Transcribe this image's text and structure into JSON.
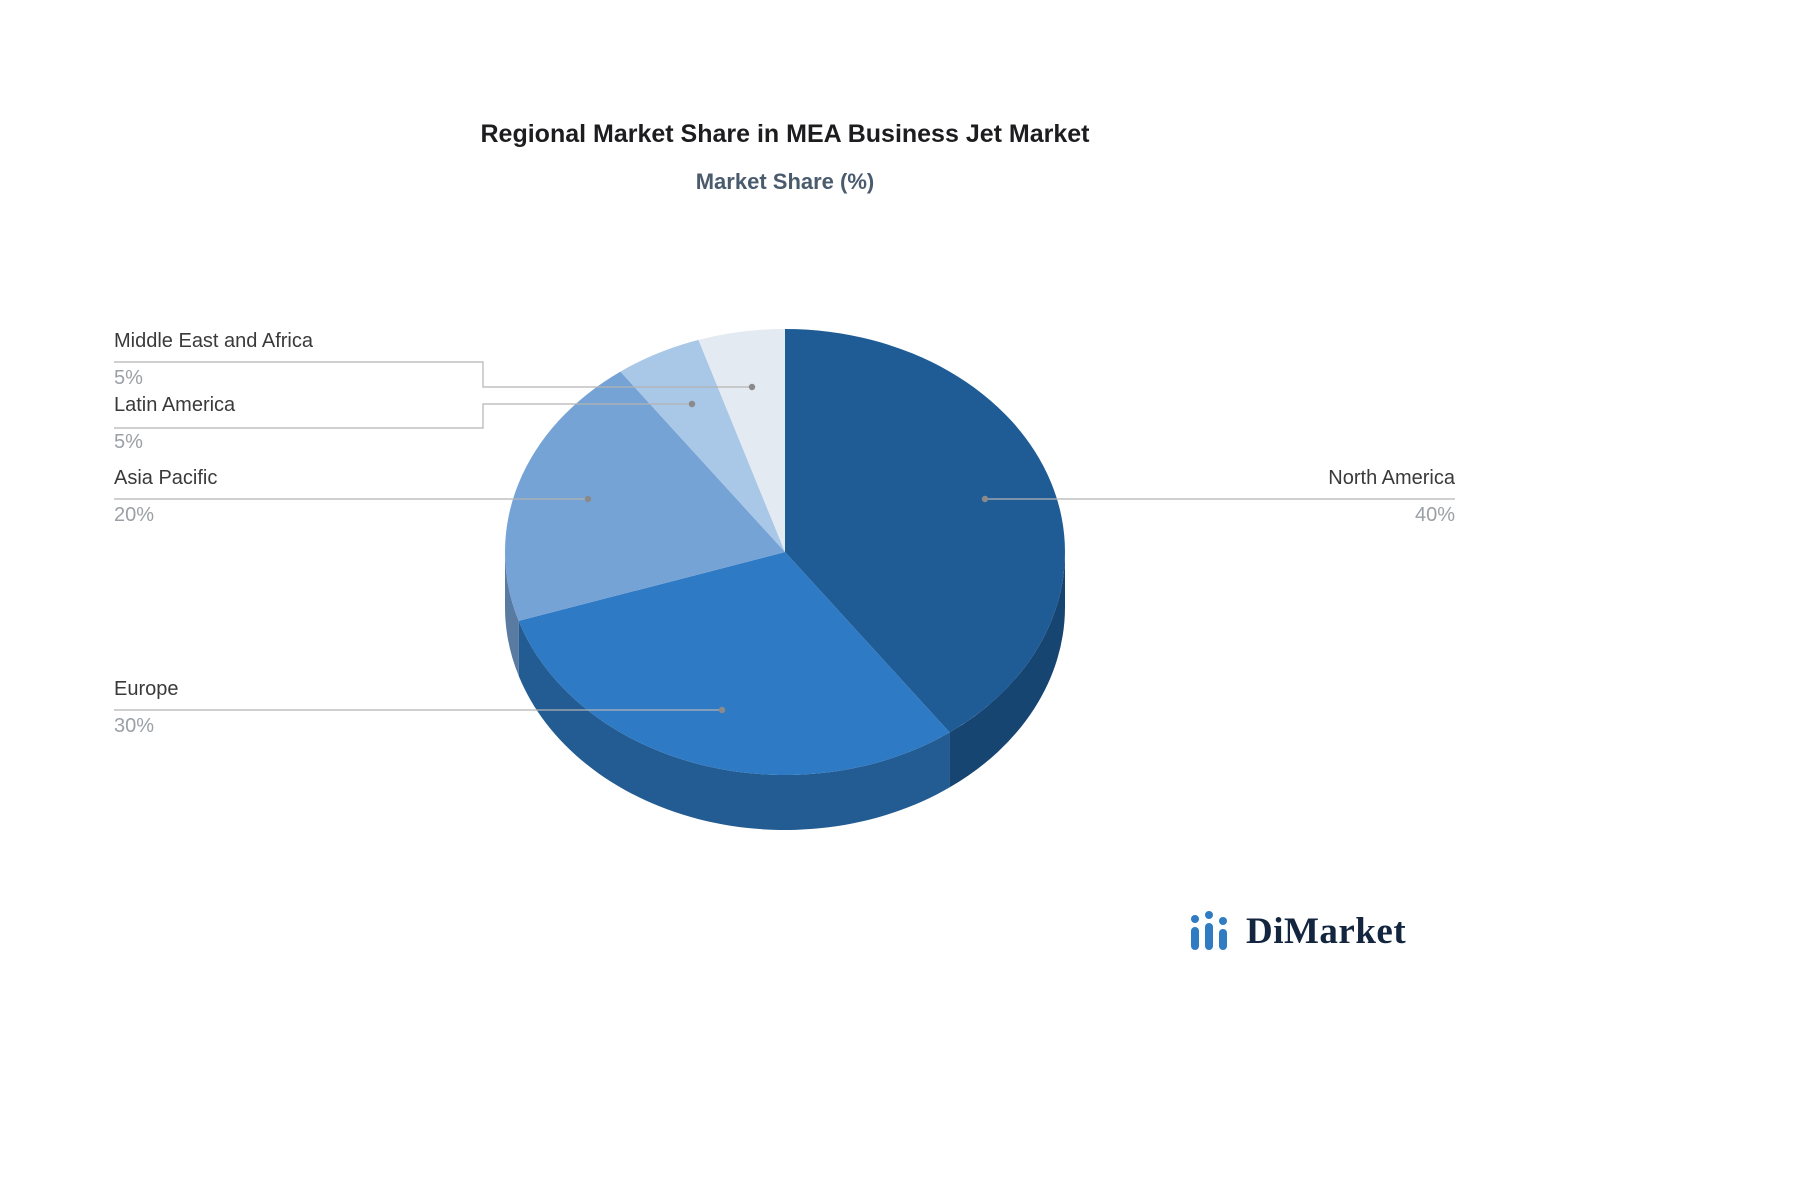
{
  "header": {
    "title": "Regional Market Share in MEA Business Jet Market",
    "subtitle": "Market Share (%)"
  },
  "chart_data": {
    "type": "pie",
    "title": "Regional Market Share in MEA Business Jet Market",
    "subtitle": "Market Share (%)",
    "unit": "%",
    "effect": "3d",
    "start_angle_deg": -90,
    "direction": "clockwise",
    "legend_position": "callout-labels",
    "slices": [
      {
        "label": "North America",
        "value": 40,
        "display": "40%",
        "color": "#1f5c96"
      },
      {
        "label": "Europe",
        "value": 30,
        "display": "30%",
        "color": "#2f7ac4"
      },
      {
        "label": "Asia Pacific",
        "value": 20,
        "display": "20%",
        "color": "#76a3d6"
      },
      {
        "label": "Latin America",
        "value": 5,
        "display": "5%",
        "color": "#a9c7e6"
      },
      {
        "label": "Middle East and Africa",
        "value": 5,
        "display": "5%",
        "color": "#e4eaf1"
      }
    ]
  },
  "branding": {
    "logo_text": "DiMarket",
    "logo_icon": "bar-chart-icon",
    "logo_text_color": "#14263f",
    "logo_icon_color": "#2f7cc3"
  }
}
